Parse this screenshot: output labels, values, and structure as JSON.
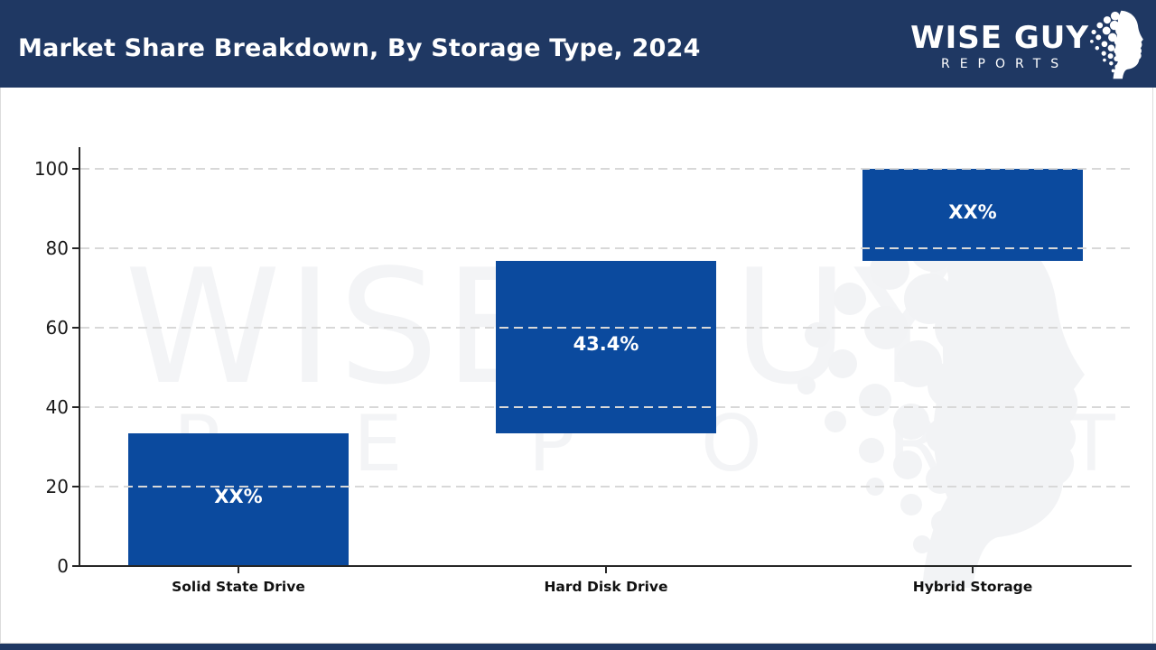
{
  "header": {
    "title": "Market Share Breakdown, By Storage Type, 2024",
    "logo_line1": "WISE GUY",
    "logo_line2": "REPORTS"
  },
  "watermark": {
    "line1": "WISE GUY",
    "line2": "R E P O R T S"
  },
  "colors": {
    "header_bg": "#1f3863",
    "footer_bg": "#1f3863",
    "bar": "#0b4a9e",
    "bar_label": "#ffffff",
    "grid": "#d8d8d8",
    "axis": "#262626",
    "watermark": "#f3f4f6"
  },
  "chart_data": {
    "type": "bar",
    "variant": "waterfall",
    "title": "Market Share Breakdown, By Storage Type, 2024",
    "categories": [
      "Solid State Drive",
      "Hard Disk Drive",
      "Hybrid Storage"
    ],
    "segments": [
      {
        "category": "Solid State Drive",
        "start": 0,
        "end": 33.4,
        "height_pct": 33.4,
        "label": "XX%"
      },
      {
        "category": "Hard Disk Drive",
        "start": 33.4,
        "end": 76.8,
        "height_pct": 43.4,
        "label": "43.4%"
      },
      {
        "category": "Hybrid Storage",
        "start": 76.8,
        "end": 100,
        "height_pct": 23.2,
        "label": "XX%"
      }
    ],
    "xlabel": "",
    "ylabel": "",
    "y_ticks": [
      0,
      20,
      40,
      60,
      80,
      100
    ],
    "ylim": [
      0,
      105
    ],
    "grid": "horizontal-dashed",
    "legend": false
  }
}
